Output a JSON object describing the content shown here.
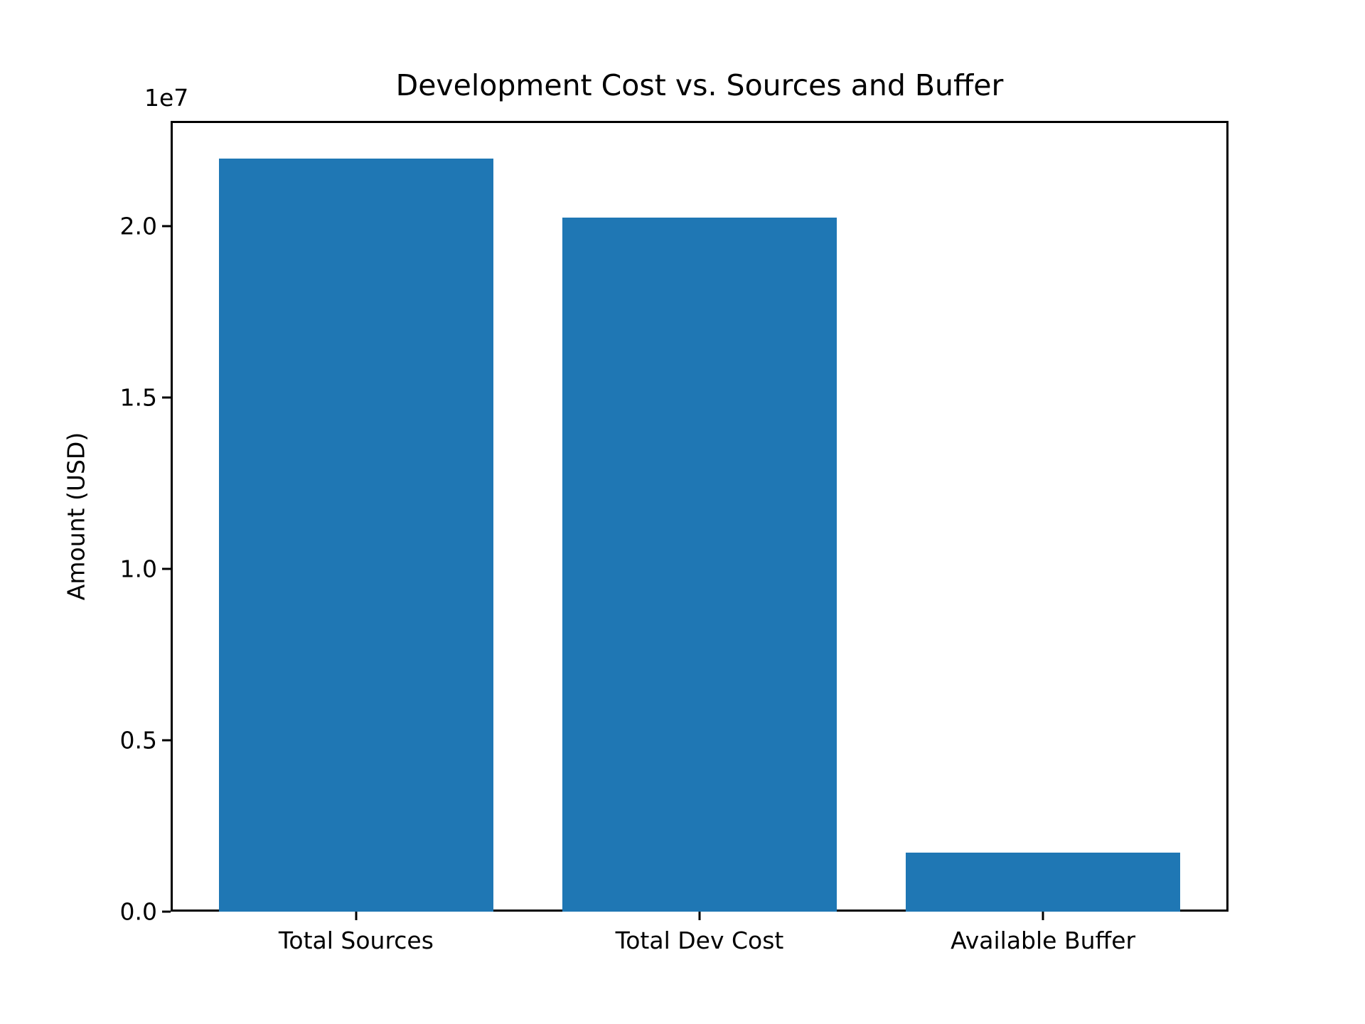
{
  "chart_data": {
    "type": "bar",
    "title": "Development Cost vs. Sources and Buffer",
    "xlabel": "",
    "ylabel": "Amount (USD)",
    "y_scale_label": "1e7",
    "categories": [
      "Total Sources",
      "Total Dev Cost",
      "Available Buffer"
    ],
    "values": [
      21975000,
      20250000,
      1725000
    ],
    "series": [
      {
        "name": "Amount (USD)",
        "values": [
          21975000,
          20250000,
          1725000
        ]
      }
    ],
    "bar_color": "#1f77b4",
    "axis_color": "#000000",
    "background_color": "#ffffff",
    "y_ticks": [
      0,
      5000000,
      10000000,
      15000000,
      20000000
    ],
    "y_tick_labels": [
      "0.0",
      "0.5",
      "1.0",
      "1.5",
      "2.0"
    ],
    "ylim": [
      0,
      23073750
    ],
    "grid": false,
    "legend_position": "none"
  }
}
